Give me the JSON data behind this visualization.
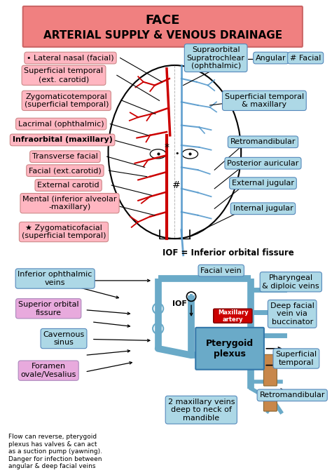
{
  "title_line1": "FACE",
  "title_line2": "ARTERIAL SUPPLY & VENOUS DRAINAGE",
  "title_bg": "#F08080",
  "title_border": "#cc6666",
  "bg_color": "#ffffff",
  "pink_box_bg": "#FFB6C1",
  "pink_box_border": "#cc8888",
  "blue_box_bg": "#ADD8E6",
  "blue_box_border": "#5588bb",
  "purple_box_bg": "#E8AADD",
  "purple_box_border": "#aa88bb",
  "red_artery": "#CC0000",
  "blue_vein": "#5599CC",
  "font_family": "Comic Sans MS",
  "footnote": "Flow can reverse, pterygoid\nplexus has valves & can act\nas a suction pump (yawning).\nDanger for infection between\nangular & deep facial veins"
}
